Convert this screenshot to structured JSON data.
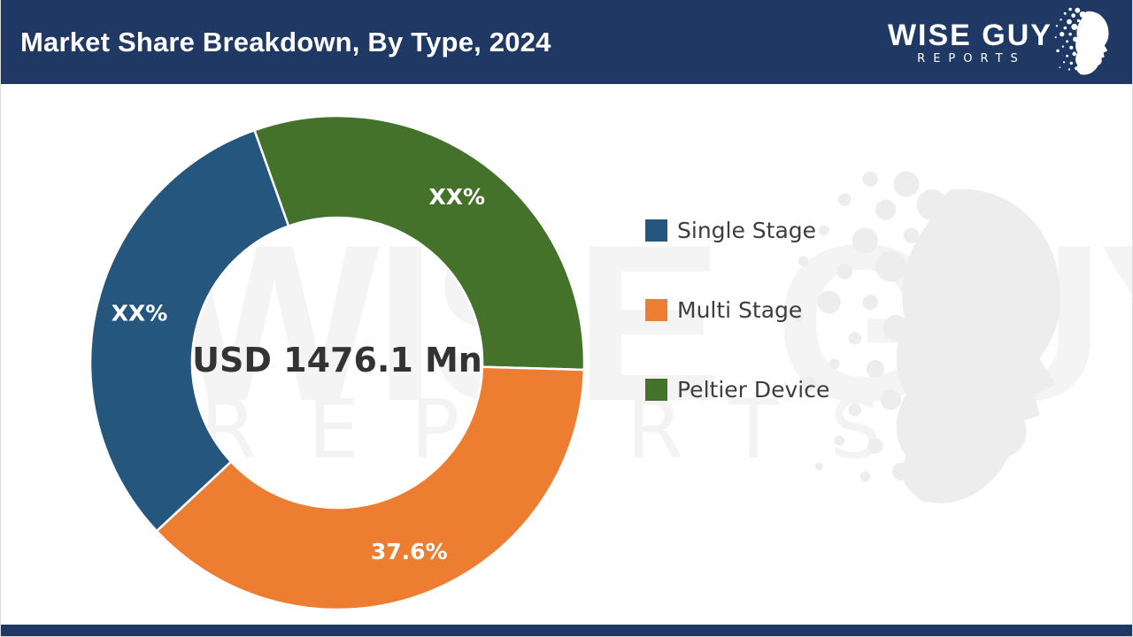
{
  "header": {
    "title": "Market Share Breakdown, By Type, 2024",
    "logo": {
      "line1": "WISE GUY",
      "line2": "REPORTS"
    }
  },
  "watermark": {
    "line1": "WISE GUY",
    "line2": "REPORTS"
  },
  "chart_data": {
    "type": "pie",
    "subtype": "donut",
    "title": "Market Share Breakdown, By Type, 2024",
    "center_label": "USD 1476.1 Mn",
    "units": "percent of market share",
    "start_angle_deg": -19.6,
    "rotation": "clockwise",
    "inner_radius_ratio": 0.59,
    "segments": [
      {
        "name": "Peltier Device",
        "value": 30.9,
        "display_label": "XX%",
        "color": "#45722a"
      },
      {
        "name": "Multi Stage",
        "value": 37.6,
        "display_label": "37.6%",
        "color": "#ed7d31"
      },
      {
        "name": "Single Stage",
        "value": 31.5,
        "display_label": "XX%",
        "color": "#25567d"
      }
    ],
    "legend_position": "right",
    "legend": [
      {
        "label": "Single Stage",
        "color": "#25567d"
      },
      {
        "label": "Multi Stage",
        "color": "#ed7d31"
      },
      {
        "label": "Peltier Device",
        "color": "#45722a"
      }
    ]
  },
  "colors": {
    "header_bg": "#1f3864",
    "footer_bg": "#1f3864",
    "title_text": "#ffffff",
    "center_text": "#333333",
    "legend_text": "#3d3d3d",
    "watermark": "#f3f3f3",
    "slice_gap": "#ffffff"
  }
}
